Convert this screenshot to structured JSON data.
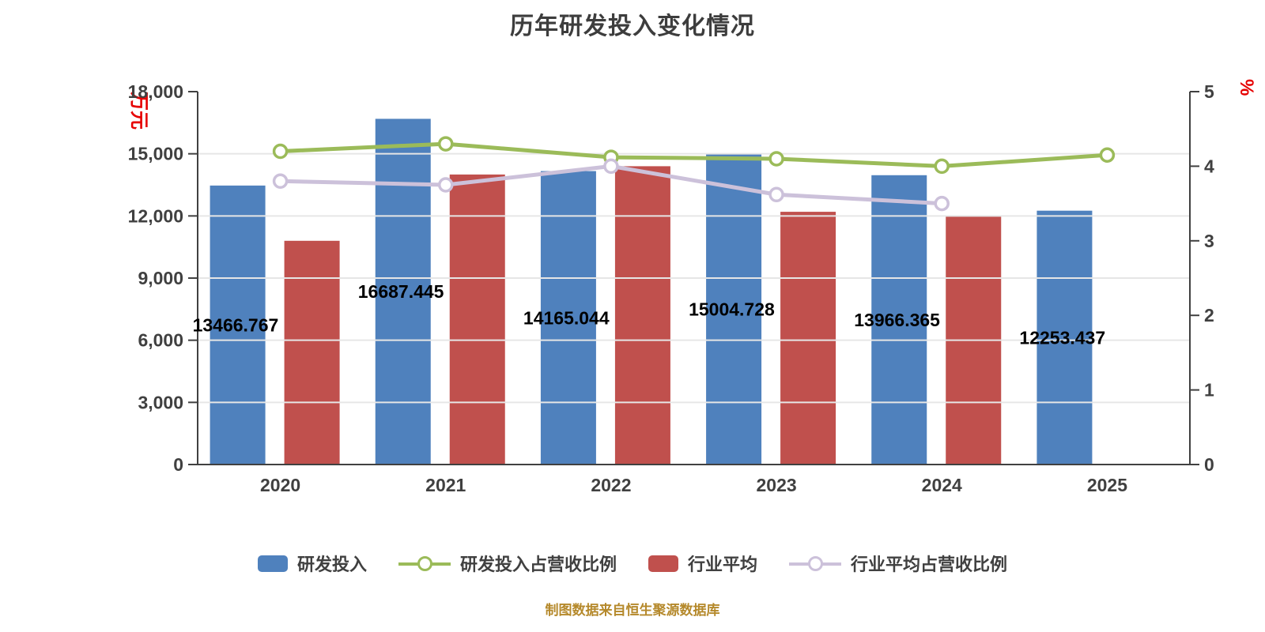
{
  "title": "历年研发投入变化情况",
  "footer": "制图数据来自恒生聚源数据库",
  "colors": {
    "bar_rd": "#4f81bd",
    "bar_industry": "#c0504d",
    "line_rd_ratio": "#9bbb59",
    "line_industry_ratio": "#ccc1da",
    "axis": "#404040",
    "grid": "#e6e6e6",
    "unit_label": "#e60000",
    "title_text": "#3d3d3d",
    "data_label": "#000000",
    "footer_text": "#b5892b"
  },
  "chart_data": {
    "type": "bar",
    "subtype": "combo-bar-line-dual-axis",
    "title": "历年研发投入变化情况",
    "categories": [
      "2020",
      "2021",
      "2022",
      "2023",
      "2024",
      "2025"
    ],
    "grid": true,
    "legend_position": "bottom",
    "left_axis": {
      "label": "万元",
      "min": 0,
      "max": 18000,
      "tick_step": 3000,
      "tick_labels": [
        "0",
        "3,000",
        "6,000",
        "9,000",
        "12,000",
        "15,000",
        "18,000"
      ]
    },
    "right_axis": {
      "label": "%",
      "min": 0,
      "max": 5,
      "tick_step": 1,
      "tick_labels": [
        "0",
        "1",
        "2",
        "3",
        "4",
        "5"
      ]
    },
    "series": [
      {
        "name": "研发投入",
        "type": "bar",
        "axis": "left",
        "color": "#4f81bd",
        "values": [
          13466.767,
          16687.445,
          14165.044,
          15004.728,
          13966.365,
          12253.437
        ],
        "value_labels": [
          "13466.767",
          "16687.445",
          "14165.044",
          "15004.728",
          "13966.365",
          "12253.437"
        ],
        "show_labels": true
      },
      {
        "name": "研发投入占营收比例",
        "type": "line",
        "axis": "right",
        "color": "#9bbb59",
        "values": [
          4.2,
          4.3,
          4.12,
          4.1,
          4.0,
          4.15
        ],
        "show_labels": false
      },
      {
        "name": "行业平均",
        "type": "bar",
        "axis": "left",
        "color": "#c0504d",
        "values": [
          10800,
          14000,
          14400,
          12200,
          12000,
          null
        ],
        "show_labels": false
      },
      {
        "name": "行业平均占营收比例",
        "type": "line",
        "axis": "right",
        "color": "#ccc1da",
        "values": [
          3.8,
          3.75,
          4.0,
          3.62,
          3.5,
          null
        ],
        "show_labels": false
      }
    ]
  },
  "legend": [
    {
      "label": "研发投入",
      "marker": "rect",
      "color": "#4f81bd"
    },
    {
      "label": "研发投入占营收比例",
      "marker": "line-dot",
      "color": "#9bbb59"
    },
    {
      "label": "行业平均",
      "marker": "rect",
      "color": "#c0504d"
    },
    {
      "label": "行业平均占营收比例",
      "marker": "line-dot",
      "color": "#ccc1da"
    }
  ]
}
